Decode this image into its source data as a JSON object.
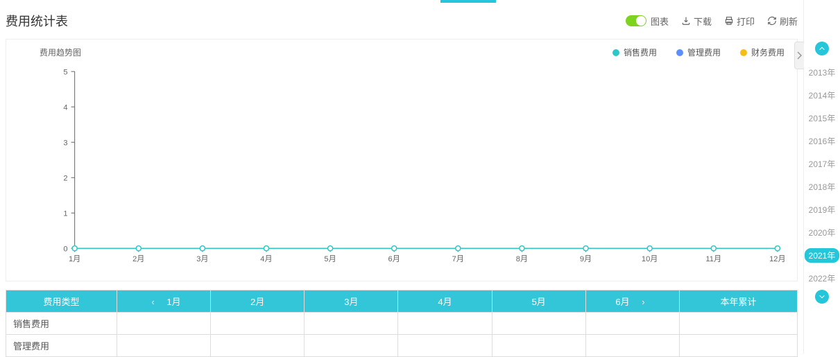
{
  "colors": {
    "accent": "#26c6da",
    "text_primary": "#333333",
    "text_secondary": "#666666",
    "border": "#dddddd",
    "table_header_bg": "#33c5d8",
    "year_inactive": "#999999",
    "year_active_bg": "#26c6da"
  },
  "header": {
    "title": "费用统计表",
    "toggle_label": "图表",
    "toggle_on": true,
    "download_label": "下载",
    "print_label": "打印",
    "refresh_label": "刷新"
  },
  "chart": {
    "type": "line",
    "title": "费用趋势图",
    "title_fontsize": 12,
    "background_color": "#ffffff",
    "axis_color": "#666666",
    "grid_on": false,
    "x_categories": [
      "1月",
      "2月",
      "3月",
      "4月",
      "5月",
      "6月",
      "7月",
      "8月",
      "9月",
      "10月",
      "11月",
      "12月"
    ],
    "ylim": [
      0,
      5
    ],
    "ytick_step": 1,
    "label_fontsize": 11,
    "marker_style": "circle",
    "marker_radius": 3.5,
    "line_width": 1.5,
    "legend_position": "top-right",
    "series": [
      {
        "name": "销售费用",
        "color": "#2ec7c9",
        "values": [
          0,
          0,
          0,
          0,
          0,
          0,
          0,
          0,
          0,
          0,
          0,
          0
        ],
        "visible": true
      },
      {
        "name": "管理费用",
        "color": "#5b8ff9",
        "values": [
          0,
          0,
          0,
          0,
          0,
          0,
          0,
          0,
          0,
          0,
          0,
          0
        ],
        "visible": false
      },
      {
        "name": "财务费用",
        "color": "#f6bd16",
        "values": [
          0,
          0,
          0,
          0,
          0,
          0,
          0,
          0,
          0,
          0,
          0,
          0
        ],
        "visible": false
      }
    ]
  },
  "table": {
    "header_bg": "#33c5d8",
    "header_fg": "#ffffff",
    "type_col_label": "费用类型",
    "total_col_label": "本年累计",
    "visible_months": [
      "1月",
      "2月",
      "3月",
      "4月",
      "5月",
      "6月"
    ],
    "rows": [
      {
        "label": "销售费用",
        "cells": [
          "",
          "",
          "",
          "",
          "",
          ""
        ],
        "total": ""
      },
      {
        "label": "管理费用",
        "cells": [
          "",
          "",
          "",
          "",
          "",
          ""
        ],
        "total": ""
      }
    ]
  },
  "year_rail": {
    "years": [
      "2013年",
      "2014年",
      "2015年",
      "2016年",
      "2017年",
      "2018年",
      "2019年",
      "2020年",
      "2021年",
      "2022年"
    ],
    "active": "2021年"
  }
}
